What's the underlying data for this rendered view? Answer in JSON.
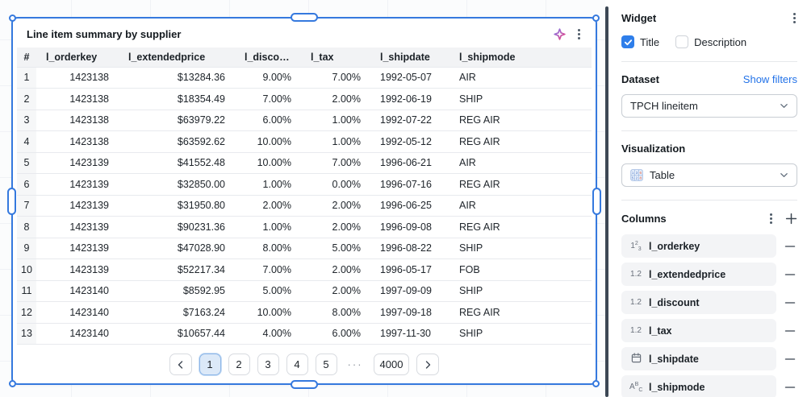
{
  "colors": {
    "selection_blue": "#3579de",
    "accent_blue": "#2e7eea",
    "link_blue": "#2272e8",
    "header_bg": "#f2f3f5",
    "active_page_bg": "#dce9f8",
    "panel_divider_dark": "#3c4754"
  },
  "widget": {
    "title": "Line item summary by supplier",
    "table": {
      "columns": [
        {
          "key": "rownum",
          "label": "#",
          "align": "center"
        },
        {
          "key": "l_orderkey",
          "label": "l_orderkey",
          "align": "right"
        },
        {
          "key": "l_extendedprice",
          "label": "l_extendedprice",
          "align": "right"
        },
        {
          "key": "l_discount",
          "label": "l_discount",
          "align": "right"
        },
        {
          "key": "l_tax",
          "label": "l_tax",
          "align": "right"
        },
        {
          "key": "l_shipdate",
          "label": "l_shipdate",
          "align": "left"
        },
        {
          "key": "l_shipmode",
          "label": "l_shipmode",
          "align": "left"
        }
      ],
      "rows": [
        [
          "1",
          "1423138",
          "$13284.36",
          "9.00%",
          "7.00%",
          "1992-05-07",
          "AIR"
        ],
        [
          "2",
          "1423138",
          "$18354.49",
          "7.00%",
          "2.00%",
          "1992-06-19",
          "SHIP"
        ],
        [
          "3",
          "1423138",
          "$63979.22",
          "6.00%",
          "1.00%",
          "1992-07-22",
          "REG AIR"
        ],
        [
          "4",
          "1423138",
          "$63592.62",
          "10.00%",
          "1.00%",
          "1992-05-12",
          "REG AIR"
        ],
        [
          "5",
          "1423139",
          "$41552.48",
          "10.00%",
          "7.00%",
          "1996-06-21",
          "AIR"
        ],
        [
          "6",
          "1423139",
          "$32850.00",
          "1.00%",
          "0.00%",
          "1996-07-16",
          "REG AIR"
        ],
        [
          "7",
          "1423139",
          "$31950.80",
          "2.00%",
          "2.00%",
          "1996-06-25",
          "AIR"
        ],
        [
          "8",
          "1423139",
          "$90231.36",
          "1.00%",
          "2.00%",
          "1996-09-08",
          "REG AIR"
        ],
        [
          "9",
          "1423139",
          "$47028.90",
          "8.00%",
          "5.00%",
          "1996-08-22",
          "SHIP"
        ],
        [
          "10",
          "1423139",
          "$52217.34",
          "7.00%",
          "2.00%",
          "1996-05-17",
          "FOB"
        ],
        [
          "11",
          "1423140",
          "$8592.95",
          "5.00%",
          "2.00%",
          "1997-09-09",
          "SHIP"
        ],
        [
          "12",
          "1423140",
          "$7163.24",
          "10.00%",
          "8.00%",
          "1997-09-18",
          "REG AIR"
        ],
        [
          "13",
          "1423140",
          "$10657.44",
          "4.00%",
          "6.00%",
          "1997-11-30",
          "SHIP"
        ]
      ]
    },
    "pagination": {
      "items": [
        {
          "type": "prev"
        },
        {
          "type": "page",
          "label": "1",
          "active": true
        },
        {
          "type": "page",
          "label": "2"
        },
        {
          "type": "page",
          "label": "3"
        },
        {
          "type": "page",
          "label": "4"
        },
        {
          "type": "page",
          "label": "5"
        },
        {
          "type": "ellipsis",
          "label": "···"
        },
        {
          "type": "page",
          "label": "4000"
        },
        {
          "type": "next"
        }
      ]
    }
  },
  "panel": {
    "widget_section": {
      "title": "Widget",
      "title_checkbox": {
        "label": "Title",
        "checked": true
      },
      "description_checkbox": {
        "label": "Description",
        "checked": false
      }
    },
    "dataset_section": {
      "title": "Dataset",
      "link": "Show filters",
      "selected": "TPCH lineitem"
    },
    "visualization_section": {
      "title": "Visualization",
      "selected": "Table"
    },
    "columns_section": {
      "title": "Columns",
      "items": [
        {
          "name": "l_orderkey",
          "type": "integer"
        },
        {
          "name": "l_extendedprice",
          "type": "decimal"
        },
        {
          "name": "l_discount",
          "type": "decimal"
        },
        {
          "name": "l_tax",
          "type": "decimal"
        },
        {
          "name": "l_shipdate",
          "type": "date"
        },
        {
          "name": "l_shipmode",
          "type": "text"
        }
      ]
    }
  }
}
